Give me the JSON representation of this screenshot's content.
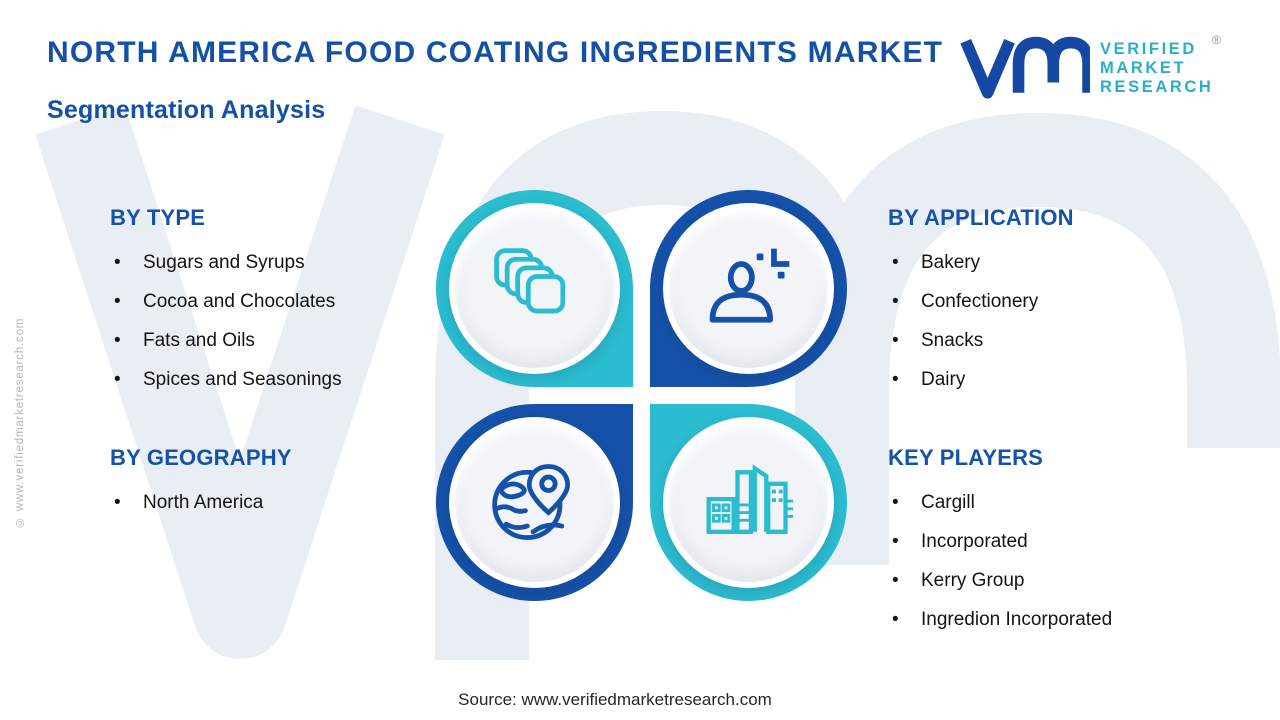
{
  "header": {
    "title": "NORTH AMERICA FOOD COATING INGREDIENTS MARKET",
    "subtitle": "Segmentation Analysis"
  },
  "logo": {
    "brand_lines": [
      "VERIFIED",
      "MARKET",
      "RESEARCH"
    ],
    "registered_mark": "®"
  },
  "watermark": {
    "side_text": "© www.verifiedmarketresearch.com"
  },
  "sections": {
    "by_type": {
      "heading": "BY TYPE",
      "items": [
        "Sugars and Syrups",
        "Cocoa and Chocolates",
        "Fats and Oils",
        "Spices and Seasonings"
      ]
    },
    "by_application": {
      "heading": "BY APPLICATION",
      "items": [
        "Bakery",
        "Confectionery",
        "Snacks",
        "Dairy"
      ]
    },
    "by_geography": {
      "heading": "BY GEOGRAPHY",
      "items": [
        "North America"
      ]
    },
    "key_players": {
      "heading": "KEY PLAYERS",
      "items": [
        "Cargill",
        "Incorporated",
        "Kerry Group",
        "Ingredion Incorporated"
      ]
    }
  },
  "diagram": {
    "quadrants": [
      {
        "position": "top-left",
        "icon": "stacked-squares-icon",
        "ring_color": "#2bbccf"
      },
      {
        "position": "top-right",
        "icon": "person-plus-icon",
        "ring_color": "#1551a8"
      },
      {
        "position": "bottom-left",
        "icon": "globe-location-pin-icon",
        "ring_color": "#1551a8"
      },
      {
        "position": "bottom-right",
        "icon": "city-buildings-icon",
        "ring_color": "#2bbccf"
      }
    ]
  },
  "footer": {
    "source": "Source: www.verifiedmarketresearch.com"
  },
  "colors": {
    "primary_blue": "#1450a5",
    "heading_blue": "#1553a8",
    "ring_blue": "#1551a8",
    "accent_teal": "#2bbccf",
    "logo_teal": "#2aafc4",
    "background_watermark": "#e9edf4"
  }
}
